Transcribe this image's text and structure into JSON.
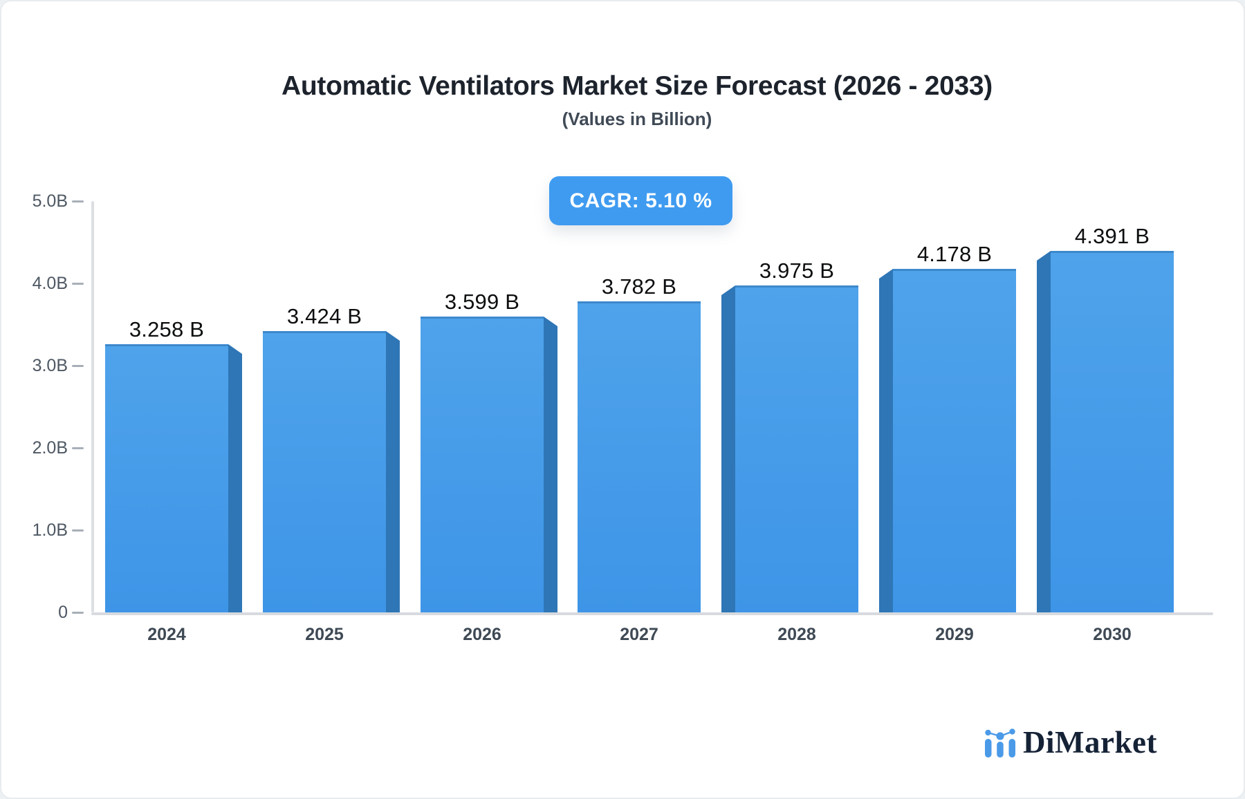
{
  "header": {
    "title": "Automatic Ventilators Market Size Forecast (2026 - 2033)",
    "subtitle": "(Values in Billion)",
    "cagr_label": "CAGR: 5.10 %"
  },
  "chart_data": {
    "type": "bar",
    "style": "3d-perspective-bars",
    "title": "Automatic Ventilators Market Size Forecast (2026 - 2033)",
    "subtitle": "(Values in Billion)",
    "cagr_percent": 5.1,
    "categories": [
      "2024",
      "2025",
      "2026",
      "2027",
      "2028",
      "2029",
      "2030"
    ],
    "values": [
      3.258,
      3.424,
      3.599,
      3.782,
      3.975,
      4.178,
      4.391
    ],
    "bar_labels": [
      "3.258 B",
      "3.424 B",
      "3.599 B",
      "3.782 B",
      "3.975 B",
      "4.178 B",
      "4.391 B"
    ],
    "values_unit": "Billion",
    "xlabel": "",
    "ylabel": "",
    "ylim": [
      0,
      5
    ],
    "yticks": [
      5,
      4,
      3,
      2,
      1,
      0
    ],
    "ytick_labels": [
      "5.0B",
      "4.0B",
      "3.0B",
      "2.0B",
      "1.0B",
      "0"
    ],
    "grid": false,
    "legend": false,
    "bar_face_color": "#459CE9",
    "bar_side_color": "#2E76B6",
    "badge_color": "#3F9BF0"
  },
  "branding": {
    "logo_text": "DiMarket",
    "logo_icon": "mini-bar-chart-icon",
    "logo_blue": "#4A9AE8",
    "logo_navy": "#152236"
  }
}
